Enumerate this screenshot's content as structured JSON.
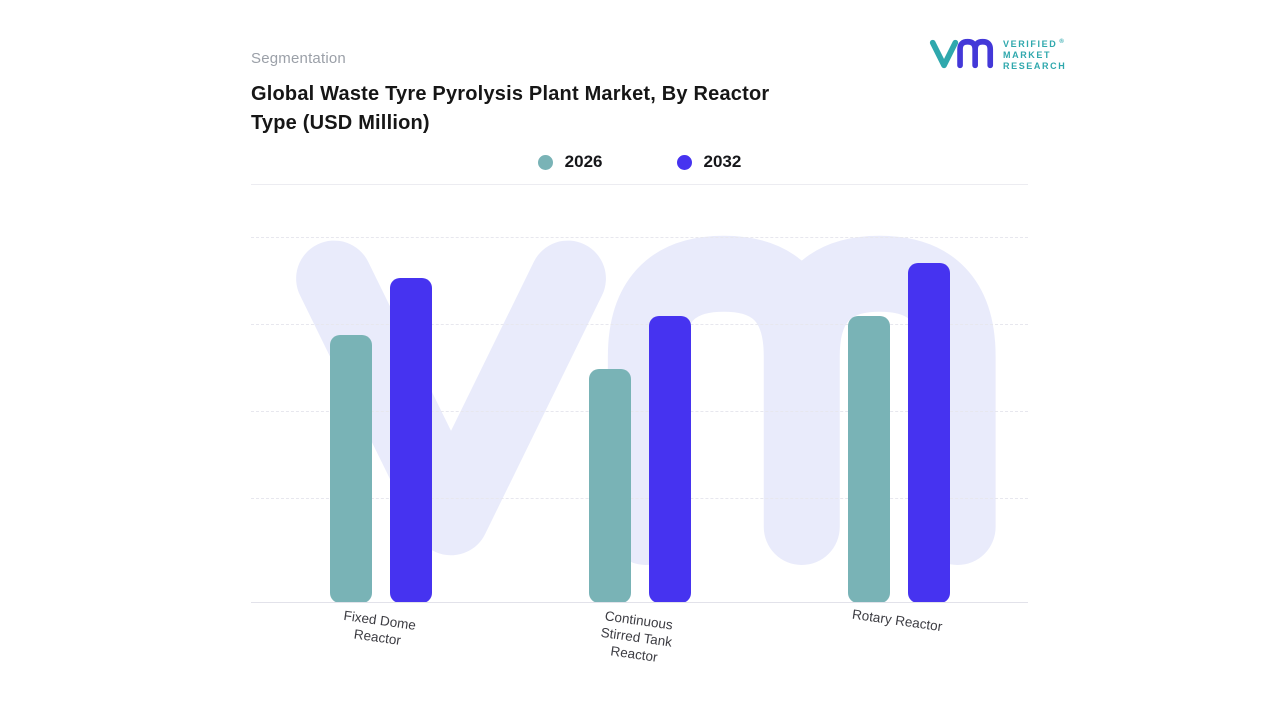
{
  "page": {
    "eyebrow": "Segmentation"
  },
  "logo": {
    "lines": [
      "VERIFIED",
      "MARKET",
      "RESEARCH"
    ],
    "registered": "®",
    "mark_teal": "#2fa8ad",
    "mark_indigo": "#4338d8",
    "text_color": "#2fa8ad"
  },
  "chart_data": {
    "type": "bar",
    "title": "Global Waste Tyre Pyrolysis Plant Market, By Reactor Type (USD Million)",
    "categories": [
      "Fixed Dome Reactor",
      "Continuous Stirred Tank Reactor",
      "Rotary Reactor"
    ],
    "series": [
      {
        "name": "2026",
        "color": "#79b3b6",
        "values": [
          71,
          62,
          76
        ]
      },
      {
        "name": "2032",
        "color": "#4633f0",
        "values": [
          86,
          76,
          90
        ]
      }
    ],
    "ylim": [
      0,
      100
    ],
    "xlabel": "",
    "ylabel": "",
    "y_axis_tick_labels_visible": false,
    "grid": "horizontal-dashed",
    "legend_position": "top-center",
    "watermark_text": "vm",
    "colors": {
      "watermark": "#e9ebfb",
      "gridline": "#e7e7ee",
      "axis_line": "#e2e2ea"
    }
  }
}
